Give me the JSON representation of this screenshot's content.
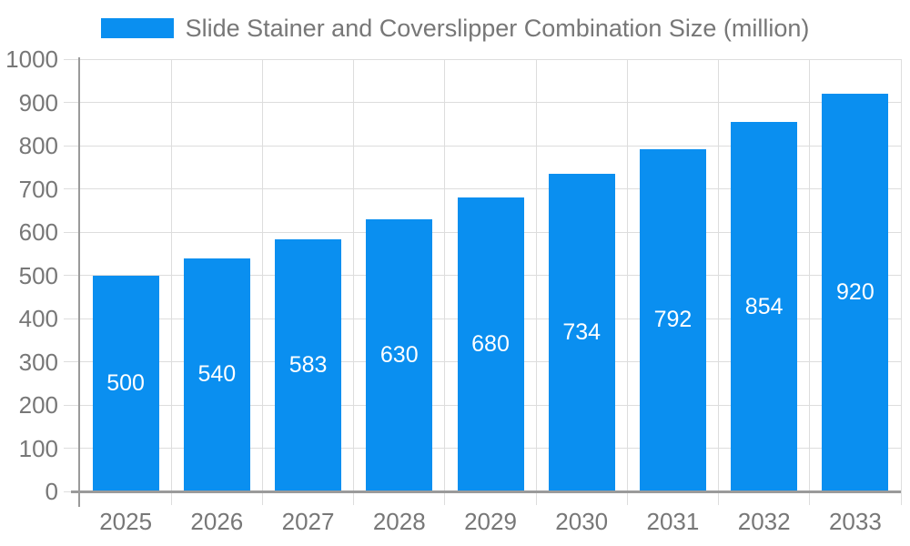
{
  "chart_data": {
    "type": "bar",
    "title": "Slide Stainer and Coverslipper Combination Size (million)",
    "legend": {
      "label": "Slide Stainer and Coverslipper Combination Size (million)",
      "position": "top"
    },
    "categories": [
      "2025",
      "2026",
      "2027",
      "2028",
      "2029",
      "2030",
      "2031",
      "2032",
      "2033"
    ],
    "values": [
      500,
      540,
      583,
      630,
      680,
      734,
      792,
      854,
      920
    ],
    "xlabel": "",
    "ylabel": "",
    "ylim": [
      0,
      1000
    ],
    "ytick_step": 100,
    "grid": true,
    "bar_labels_inside": true,
    "colors": {
      "bar": "#0a8ff0",
      "bar_label": "#ffffff",
      "grid": "#dddddd",
      "axis": "#9a9a9a",
      "tick_label": "#777777",
      "background": "#ffffff"
    }
  }
}
